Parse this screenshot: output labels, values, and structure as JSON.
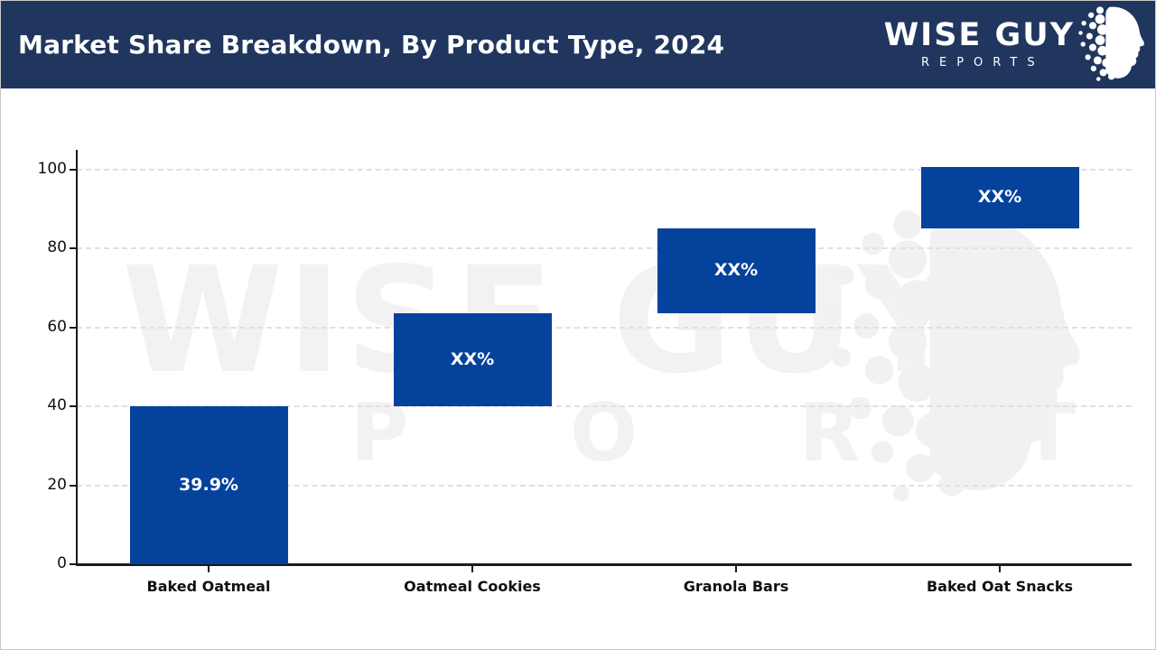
{
  "header": {
    "title": "Market Share Breakdown, By Product Type, 2024",
    "bg_color": "#20365f",
    "logo": {
      "line1": "WISE GUY",
      "line2": "REPORTS"
    }
  },
  "watermark": {
    "line1": "WISE GUY",
    "line2": "P O R T S"
  },
  "chart_data": {
    "type": "bar",
    "subtype": "waterfall",
    "title": "Market Share Breakdown, By Product Type, 2024",
    "xlabel": "",
    "ylabel": "",
    "ylim": [
      0,
      105
    ],
    "yticks": [
      0,
      20,
      40,
      60,
      80,
      100
    ],
    "grid": "horizontal dashed",
    "legend": "none",
    "categories": [
      "Baked Oatmeal",
      "Oatmeal Cookies",
      "Granola Bars",
      "Baked Oat Snacks"
    ],
    "segments": [
      {
        "category": "Baked Oatmeal",
        "start": 0,
        "end": 39.9,
        "label": "39.9%"
      },
      {
        "category": "Oatmeal Cookies",
        "start": 40,
        "end": 63.5,
        "label": "XX%"
      },
      {
        "category": "Granola Bars",
        "start": 63.5,
        "end": 85,
        "label": "XX%"
      },
      {
        "category": "Baked Oat Snacks",
        "start": 85,
        "end": 100.5,
        "label": "XX%"
      }
    ],
    "colors": {
      "bar": "#04429c",
      "bar_label": "#ffffff",
      "axis": "#1a1a1a",
      "gridline": "#e0e0e0",
      "watermark": "#f2f2f4"
    }
  }
}
